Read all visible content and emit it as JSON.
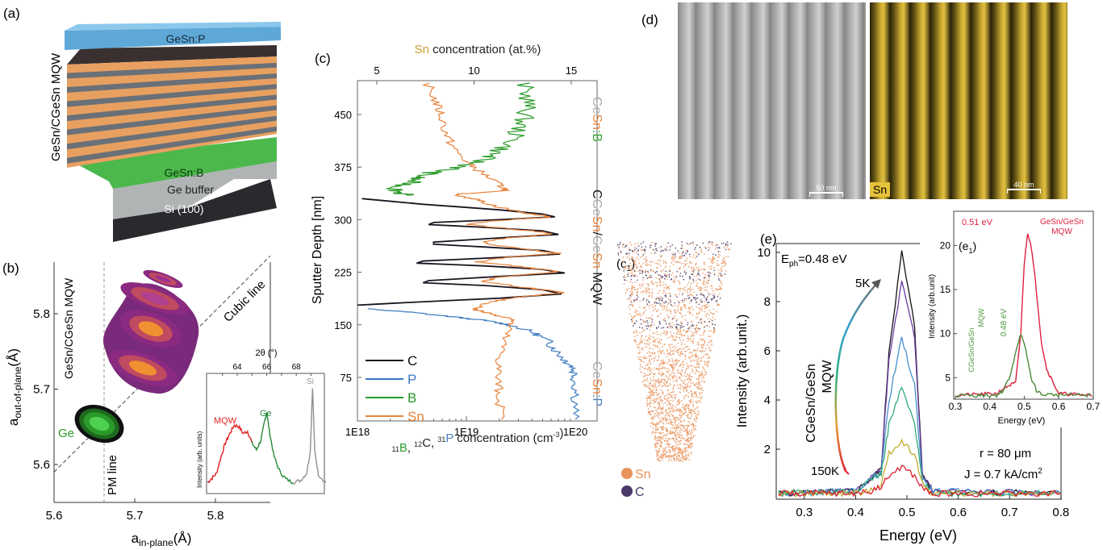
{
  "panels": {
    "a": {
      "label": "(a)",
      "stack_title": "GeSn/CGeSn MQW",
      "layers": [
        "GeSn:P",
        "GeSn:B",
        "Ge buffer",
        "Si (100)"
      ],
      "colors": {
        "top": "#5ea8d8",
        "well": "#e8a060",
        "barrier": "#6a7078",
        "bottom": "#4cb84c",
        "buffer": "#b0b4b4",
        "substrate": "#2a2a2e"
      }
    },
    "b": {
      "label": "(b)"
    },
    "c1": {
      "label": "(c",
      "label_sub": "1",
      "label_close": ")",
      "legend": [
        {
          "name": "Sn",
          "color": "#e8925a"
        },
        {
          "name": "C",
          "color": "#4a3a6a"
        }
      ]
    },
    "d": {
      "label": "(d)",
      "left_scalebar": "50 nm",
      "right_scalebar": "40 nm",
      "right_element": "Sn"
    },
    "e": {
      "label": "(e)"
    }
  },
  "chart_data": [
    {
      "id": "b-rsm",
      "type": "heatmap",
      "xlabel": "a",
      "xlabel_sub": "in-plane",
      "xlabel_unit": "(Å)",
      "ylabel": "a",
      "ylabel_sub": "out-of-plane",
      "ylabel_unit": "(Å)",
      "xlim": [
        5.6,
        5.87
      ],
      "ylim": [
        5.55,
        5.87
      ],
      "xticks": [
        "5.6",
        "5.7",
        "5.8"
      ],
      "yticks": [
        "5.6",
        "5.7",
        "5.8"
      ],
      "annotations": {
        "cubic_line": "Cubic line",
        "pm_line": "PM line",
        "mqw": "GeSn/CGeSn MQW",
        "ge": "Ge"
      },
      "pm_line_x": 5.662,
      "peaks": [
        {
          "name": "Ge",
          "x": 5.656,
          "y": 5.654,
          "color": "#30c030"
        },
        {
          "name": "MQW",
          "x": 5.71,
          "y": 5.728,
          "color": "#f09030"
        },
        {
          "name": "MQW",
          "x": 5.72,
          "y": 5.78,
          "color": "#f09030"
        },
        {
          "name": "MQW",
          "x": 5.725,
          "y": 5.82,
          "color": "#b04090"
        },
        {
          "name": "MQW",
          "x": 5.735,
          "y": 5.846,
          "color": "#a03090"
        }
      ]
    },
    {
      "id": "b-xrd-inset",
      "type": "line",
      "xlabel": "2θ (°)",
      "ylabel": "Intensity (arb. units)",
      "xticks": [
        "64",
        "66",
        "68"
      ],
      "xlim": [
        61.9,
        70
      ],
      "ylim": [
        0,
        1
      ],
      "series": [
        {
          "name": "MQW",
          "color": "#e02020",
          "points": [
            [
              62,
              0.08
            ],
            [
              62.3,
              0.12
            ],
            [
              62.6,
              0.16
            ],
            [
              62.9,
              0.3
            ],
            [
              63.2,
              0.42
            ],
            [
              63.5,
              0.5
            ],
            [
              63.8,
              0.57
            ],
            [
              64.1,
              0.56
            ],
            [
              64.4,
              0.5
            ],
            [
              64.7,
              0.52
            ],
            [
              65,
              0.42
            ]
          ]
        },
        {
          "name": "Ge",
          "color": "#2a8a3a",
          "points": [
            [
              65,
              0.42
            ],
            [
              65.3,
              0.36
            ],
            [
              65.6,
              0.44
            ],
            [
              65.85,
              0.6
            ],
            [
              66,
              0.68
            ],
            [
              66.2,
              0.5
            ],
            [
              66.5,
              0.3
            ],
            [
              66.9,
              0.17
            ],
            [
              67.3,
              0.11
            ],
            [
              67.8,
              0.08
            ]
          ]
        },
        {
          "name": "Si",
          "color": "#909090",
          "points": [
            [
              67.8,
              0.08
            ],
            [
              68.3,
              0.1
            ],
            [
              68.7,
              0.16
            ],
            [
              68.95,
              0.35
            ],
            [
              69.1,
              0.9
            ],
            [
              69.25,
              0.35
            ],
            [
              69.5,
              0.15
            ],
            [
              70,
              0.08
            ]
          ]
        }
      ]
    },
    {
      "id": "c-sims",
      "type": "line",
      "ylabel": "Sputter Depth [nm]",
      "xlabel_parts": [
        {
          "t": "11",
          "sup": true,
          "color": "#222"
        },
        {
          "t": "B",
          "color": "#2fa02f"
        },
        {
          "t": ", ",
          "color": "#222"
        },
        {
          "t": "12",
          "sup": true,
          "color": "#222"
        },
        {
          "t": "C, ",
          "color": "#222"
        },
        {
          "t": "31",
          "sup": true,
          "color": "#222"
        },
        {
          "t": "P",
          "color": "#4a7fc0"
        },
        {
          "t": " concentration (cm",
          "color": "#222"
        },
        {
          "t": "-3",
          "sup": true,
          "color": "#222"
        },
        {
          "t": ")",
          "color": "#222"
        }
      ],
      "top_xlabel_parts": [
        {
          "t": "Sn",
          "color": "#c8a030"
        },
        {
          "t": " concentration (at.%)",
          "color": "#222"
        }
      ],
      "x_scale": "log",
      "xlim": [
        1e+18,
        1.4e+20
      ],
      "ylim": [
        12,
        498
      ],
      "xticks": [
        "1E18",
        "1E19",
        "1E20"
      ],
      "yticks": [
        "75",
        "150",
        "225",
        "300",
        "375",
        "450"
      ],
      "top_xlim": [
        4,
        16
      ],
      "top_xticks": [
        "5",
        "10",
        "15"
      ],
      "side_labels": [
        [
          {
            "t": "Ge",
            "color": "#aaaaaa"
          },
          {
            "t": "Sn",
            "color": "#e8823a"
          },
          {
            "t": ":B",
            "color": "#2fa02f"
          }
        ],
        [
          {
            "t": "C",
            "color": "#111"
          },
          {
            "t": "Ge",
            "color": "#aaaaaa"
          },
          {
            "t": "Sn",
            "color": "#e8823a"
          },
          {
            "t": "/",
            "color": "#111"
          },
          {
            "t": "Ge",
            "color": "#aaaaaa"
          },
          {
            "t": "Sn",
            "color": "#e8823a"
          },
          {
            "t": " MQW",
            "color": "#111"
          }
        ],
        [
          {
            "t": "Ge",
            "color": "#aaaaaa"
          },
          {
            "t": "Sn",
            "color": "#e8823a"
          },
          {
            "t": ":P",
            "color": "#4a7fc0"
          }
        ]
      ],
      "legend_position": "bottom-left",
      "series": [
        {
          "name": "C",
          "color": "#1a1420",
          "axis": "bottom",
          "points": [
            [
              330,
              1.1e+18
            ],
            [
              322,
              4e+18
            ],
            [
              314,
              2e+19
            ],
            [
              308,
              5e+19
            ],
            [
              304,
              6.5e+19
            ],
            [
              300,
              2e+19
            ],
            [
              296,
              5e+18
            ],
            [
              293,
              4.5e+18
            ],
            [
              289,
              1.5e+19
            ],
            [
              284,
              5e+19
            ],
            [
              279,
              7e+19
            ],
            [
              274,
              2e+19
            ],
            [
              268,
              5e+18
            ],
            [
              265,
              5e+18
            ],
            [
              261,
              1.5e+19
            ],
            [
              256,
              5e+19
            ],
            [
              251,
              7.2e+19
            ],
            [
              246,
              2e+19
            ],
            [
              241,
              4e+18
            ],
            [
              238,
              3.5e+18
            ],
            [
              234,
              1.5e+19
            ],
            [
              229,
              5e+19
            ],
            [
              224,
              8e+19
            ],
            [
              219,
              2e+19
            ],
            [
              213,
              4.5e+18
            ],
            [
              210,
              4e+18
            ],
            [
              206,
              1.5e+19
            ],
            [
              200,
              5e+19
            ],
            [
              194,
              7.5e+19
            ],
            [
              188,
              2e+19
            ],
            [
              182,
              3e+18
            ],
            [
              178,
              1e+18
            ]
          ]
        },
        {
          "name": "P",
          "color": "#3a7ac0",
          "axis": "bottom",
          "points": [
            [
              173,
              1.2e+18
            ],
            [
              168,
              3e+18
            ],
            [
              162,
              7e+18
            ],
            [
              156,
              1.5e+19
            ],
            [
              150,
              2.5e+19
            ],
            [
              140,
              4e+19
            ],
            [
              128,
              5.5e+19
            ],
            [
              115,
              6.5e+19
            ],
            [
              100,
              8e+19
            ],
            [
              90,
              9.5e+19
            ],
            [
              75,
              1e+20
            ],
            [
              50,
              1.02e+20
            ],
            [
              15,
              1e+20
            ]
          ]
        },
        {
          "name": "B",
          "color": "#2a9a2a",
          "axis": "bottom",
          "points": [
            [
              495,
              3.3e+19
            ],
            [
              470,
              3.7e+19
            ],
            [
              450,
              3.5e+19
            ],
            [
              430,
              3e+19
            ],
            [
              410,
              2.6e+19
            ],
            [
              395,
              1.8e+19
            ],
            [
              385,
              1.4e+19
            ],
            [
              375,
              9e+18
            ],
            [
              368,
              5e+18
            ],
            [
              360,
              3.5e+18
            ],
            [
              352,
              3e+18
            ],
            [
              345,
              2.2e+18
            ],
            [
              338,
              2.5e+18
            ],
            [
              335,
              2.8e+18
            ]
          ]
        },
        {
          "name": "Sn",
          "color": "#e8823a",
          "axis": "top",
          "points": [
            [
              495,
              7.6
            ],
            [
              470,
              8
            ],
            [
              450,
              8.3
            ],
            [
              420,
              8.6
            ],
            [
              400,
              9
            ],
            [
              380,
              9.7
            ],
            [
              365,
              10.5
            ],
            [
              350,
              11.3
            ],
            [
              342,
              11.7
            ],
            [
              336,
              9
            ],
            [
              330,
              10
            ],
            [
              320,
              11
            ],
            [
              310,
              12.5
            ],
            [
              304,
              14
            ],
            [
              298,
              11
            ],
            [
              294,
              9.6
            ],
            [
              288,
              11.5
            ],
            [
              280,
              14.2
            ],
            [
              272,
              11
            ],
            [
              266,
              10.5
            ],
            [
              260,
              12
            ],
            [
              252,
              14.3
            ],
            [
              246,
              11.5
            ],
            [
              240,
              10.2
            ],
            [
              234,
              12
            ],
            [
              226,
              14.3
            ],
            [
              219,
              11.5
            ],
            [
              212,
              10.4
            ],
            [
              206,
              12
            ],
            [
              196,
              14.5
            ],
            [
              189,
              12
            ],
            [
              182,
              10.8
            ],
            [
              172,
              10
            ],
            [
              165,
              11
            ],
            [
              158,
              12.1
            ],
            [
              150,
              11.8
            ],
            [
              125,
              11.5
            ],
            [
              100,
              11.3
            ],
            [
              75,
              11.2
            ],
            [
              50,
              11.3
            ],
            [
              15,
              11.4
            ]
          ]
        }
      ]
    },
    {
      "id": "e-el",
      "type": "line",
      "xlabel": "Energy (eV)",
      "ylabel": "Intensity (arb.unit.)",
      "xlim": [
        0.25,
        0.8
      ],
      "ylim": [
        0,
        10.5
      ],
      "xticks": [
        "0.3",
        "0.4",
        "0.5",
        "0.6",
        "0.7",
        "0.8"
      ],
      "yticks": [
        "2",
        "4",
        "6",
        "8",
        "10"
      ],
      "annotations": {
        "eph_main": "E",
        "eph_sub": "ph",
        "eph_value": "=0.48 eV",
        "sample": "CGeSn/GeSn",
        "sample2": "MQW",
        "t_high": "5K",
        "t_low": "150K",
        "radius": "r = 80 μm",
        "current": "J = 0.7 kA/cm",
        "current_sup": "2"
      },
      "x": [
        0.25,
        0.4,
        0.43,
        0.45,
        0.465,
        0.49,
        0.515,
        0.53,
        0.55,
        0.8
      ],
      "series": [
        {
          "color": "#111111",
          "values": [
            0.2,
            0.3,
            0.8,
            1.2,
            6.0,
            10.0,
            7.0,
            1.0,
            0.3,
            0.2
          ]
        },
        {
          "color": "#6a3aa0",
          "values": [
            0.2,
            0.3,
            0.8,
            1.2,
            5.6,
            8.8,
            6.5,
            1.0,
            0.3,
            0.2
          ]
        },
        {
          "color": "#4a90d0",
          "values": [
            0.2,
            0.3,
            0.8,
            1.1,
            4.0,
            6.5,
            4.6,
            0.8,
            0.3,
            0.2
          ]
        },
        {
          "color": "#30a878",
          "values": [
            0.2,
            0.3,
            0.8,
            1.0,
            3.0,
            4.5,
            3.0,
            0.7,
            0.2,
            0.2
          ]
        },
        {
          "color": "#c0aa30",
          "values": [
            0.2,
            0.2,
            0.3,
            0.6,
            1.8,
            2.35,
            1.8,
            0.6,
            0.2,
            0.2
          ]
        },
        {
          "color": "#e02030",
          "values": [
            0.2,
            0.2,
            0.3,
            0.5,
            0.9,
            1.3,
            0.9,
            0.4,
            0.2,
            0.2
          ]
        }
      ]
    },
    {
      "id": "e1-inset",
      "type": "line",
      "label": "(e",
      "label_sub": "1",
      "label_close": ")",
      "xlabel": "Energy (eV)",
      "ylabel": "Intensity (arb.unit)",
      "xlim": [
        0.3,
        0.7
      ],
      "ylim": [
        2.5,
        23.5
      ],
      "xticks": [
        "0.3",
        "0.4",
        "0.5",
        "0.6",
        "0.7"
      ],
      "yticks": [
        "5",
        "10",
        "15",
        "20"
      ],
      "annotations": {
        "red_energy": "0.51 eV",
        "red_name1": "GeSn/GeSn",
        "red_name2": "MQW",
        "green_name1": "CGeSn/GeSn",
        "green_name2": "MQW",
        "green_energy": "0.48 eV"
      },
      "series": [
        {
          "name": "GeSn/GeSn MQW",
          "color": "#e02040",
          "points": [
            [
              0.3,
              3
            ],
            [
              0.42,
              3.2
            ],
            [
              0.44,
              3.8
            ],
            [
              0.46,
              4.2
            ],
            [
              0.475,
              4.4
            ],
            [
              0.49,
              10
            ],
            [
              0.5,
              18
            ],
            [
              0.51,
              21.5
            ],
            [
              0.52,
              20
            ],
            [
              0.535,
              15
            ],
            [
              0.55,
              9
            ],
            [
              0.565,
              6
            ],
            [
              0.58,
              4.8
            ],
            [
              0.6,
              3.2
            ],
            [
              0.7,
              3
            ]
          ]
        },
        {
          "name": "CGeSn/GeSn MQW",
          "color": "#4a8a3a",
          "points": [
            [
              0.3,
              3
            ],
            [
              0.42,
              3
            ],
            [
              0.44,
              3.6
            ],
            [
              0.46,
              5.2
            ],
            [
              0.475,
              8
            ],
            [
              0.49,
              10
            ],
            [
              0.505,
              8
            ],
            [
              0.52,
              5
            ],
            [
              0.535,
              3.6
            ],
            [
              0.55,
              3.1
            ],
            [
              0.7,
              3
            ]
          ]
        }
      ]
    }
  ]
}
